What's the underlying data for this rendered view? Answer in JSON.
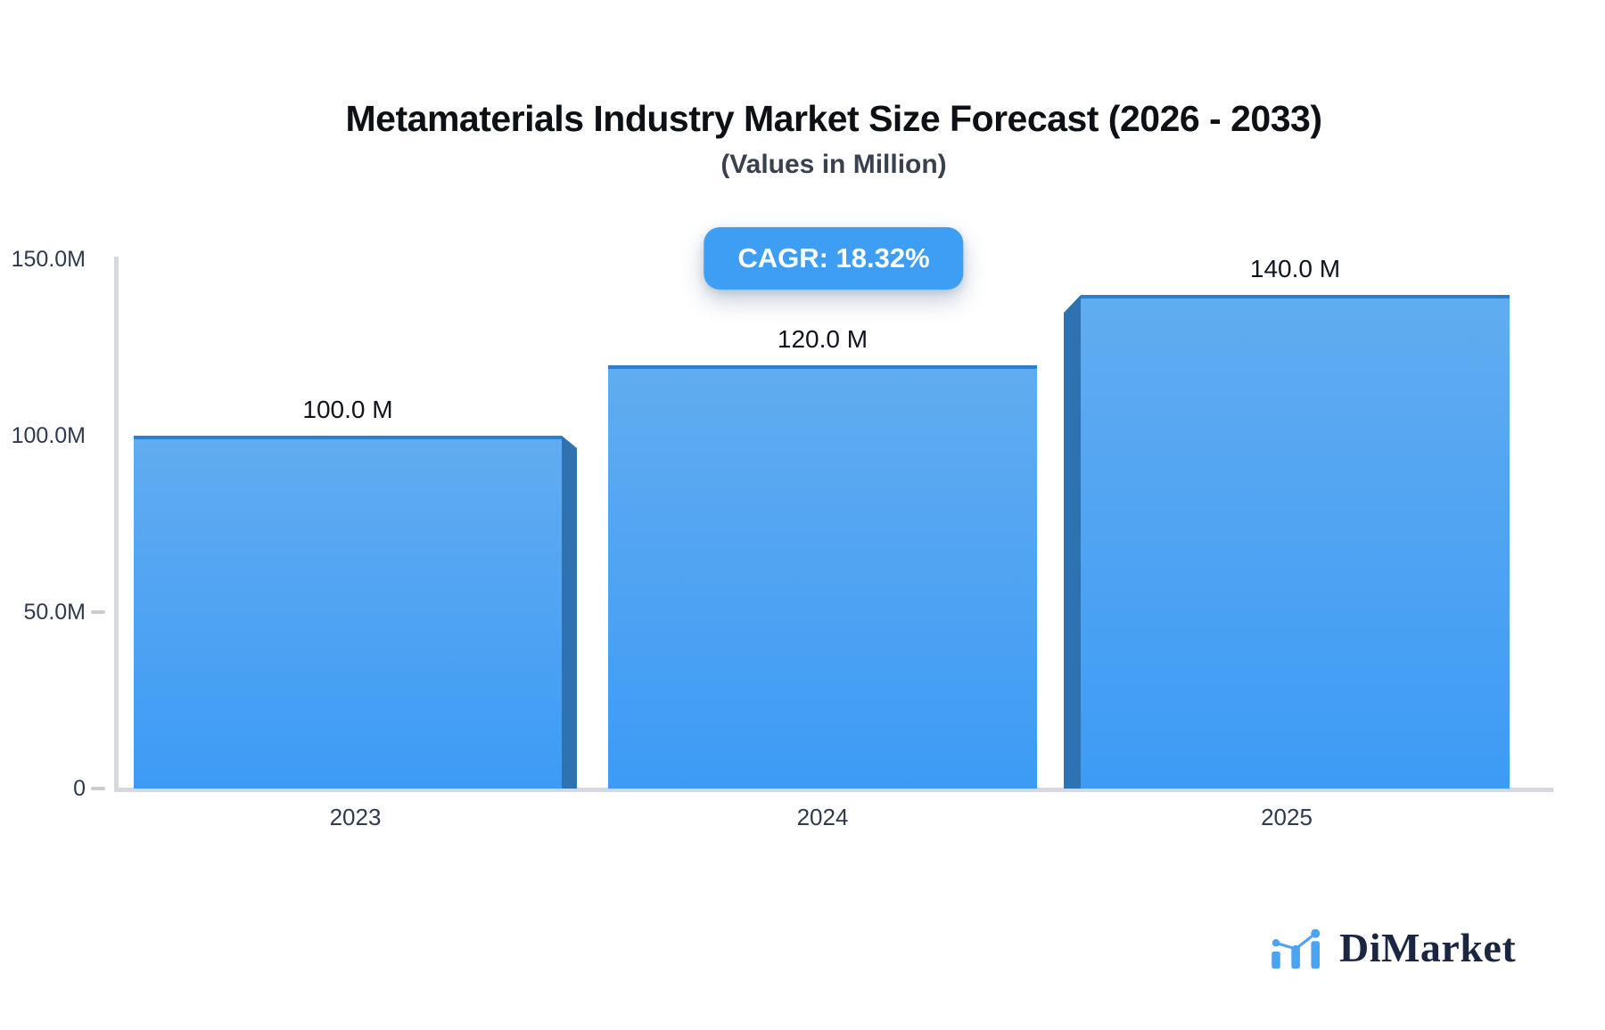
{
  "header": {
    "title": "Metamaterials Industry Market Size Forecast (2026 - 2033)",
    "subtitle": "(Values in Million)"
  },
  "badge": {
    "label": "CAGR: 18.32%"
  },
  "chart_data": {
    "type": "bar",
    "title": "Metamaterials Industry Market Size Forecast (2026 - 2033)",
    "subtitle": "(Values in Million)",
    "annotation": "CAGR: 18.32%",
    "categories": [
      "2023",
      "2024",
      "2025"
    ],
    "values": [
      100.0,
      120.0,
      140.0
    ],
    "value_labels": [
      "100.0 M",
      "120.0 M",
      "140.0 M"
    ],
    "unit": "Million",
    "ylim": [
      0,
      150
    ],
    "yticks": [
      {
        "value": 150,
        "label": "150.0M",
        "tick": false
      },
      {
        "value": 100,
        "label": "100.0M",
        "tick": false
      },
      {
        "value": 50,
        "label": "50.0M",
        "tick": true
      },
      {
        "value": 0,
        "label": "0",
        "tick": true
      }
    ],
    "grid": false,
    "legend": null,
    "bar_3d_side": [
      "right",
      "none",
      "left"
    ]
  },
  "colors": {
    "bar_top": "#61ACF0",
    "bar_bottom": "#3D9BF5",
    "bar_border": "#2D7FCE",
    "bar_side": "#2E72B2",
    "badge_bg": "#3E9EF3",
    "axis_line": "#D5D8DE",
    "tick": "#C8CCD4",
    "title_text": "#0D1015",
    "subtitle_text": "#39404E",
    "axis_label_text": "#2F3A4E",
    "value_label_text": "#10141C",
    "logo_navy": "#1B2742",
    "logo_blue": "#4BA3F3"
  },
  "branding": {
    "logo_text": "DiMarket",
    "logo_icon": "mini-bar-line-chart-icon"
  }
}
